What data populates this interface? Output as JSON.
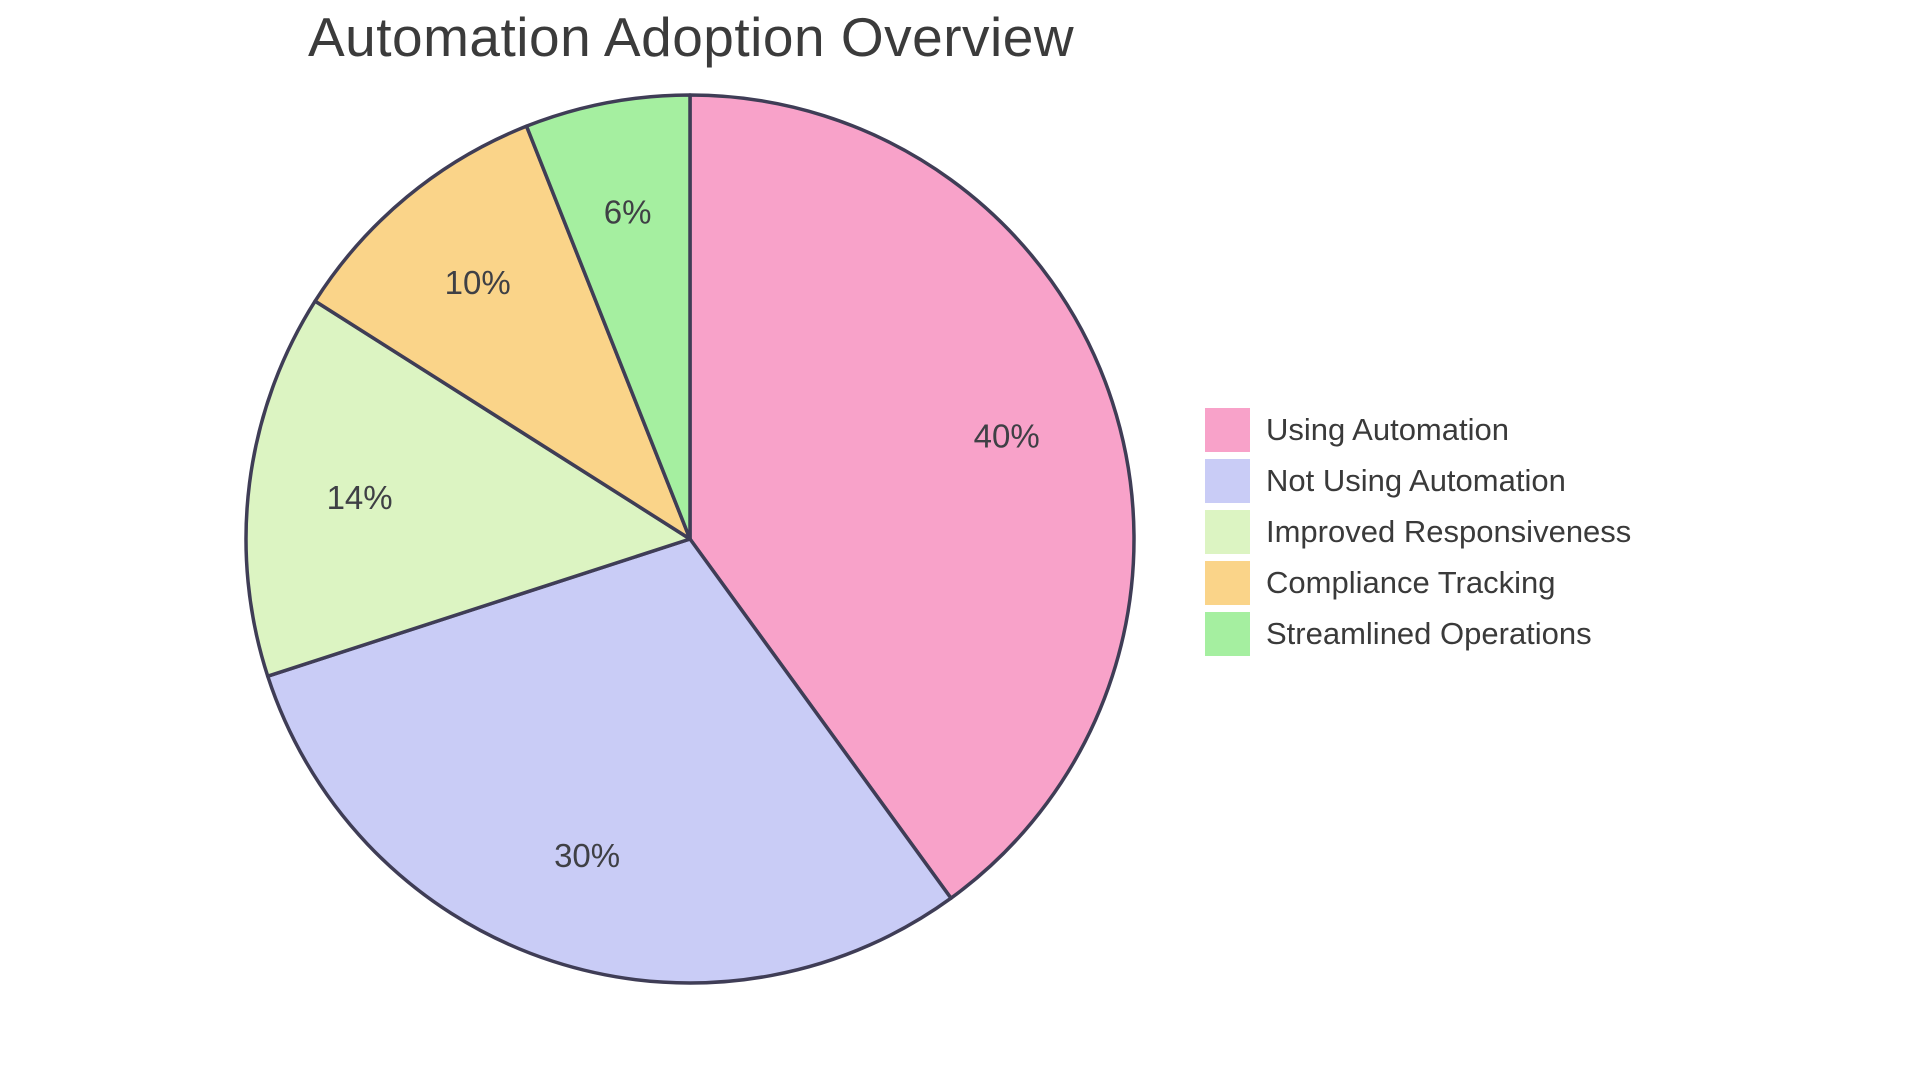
{
  "chart_data": {
    "type": "pie",
    "title": "Automation Adoption Overview",
    "start_angle_deg": 90,
    "direction": "clockwise",
    "legend_position": "right",
    "stroke_color": "#3F3D56",
    "percent_text_color": "#3F4045",
    "title_text_color": "#3B3B3B",
    "legend_text_color": "#3A3A3A",
    "background_color": "#FFFFFF",
    "slices": [
      {
        "label": "Using Automation",
        "value_pct": 40,
        "display": "40%",
        "color": "#F8A2C9"
      },
      {
        "label": "Not Using Automation",
        "value_pct": 30,
        "display": "30%",
        "color": "#C9CCF6"
      },
      {
        "label": "Improved Responsiveness",
        "value_pct": 14,
        "display": "14%",
        "color": "#DCF4C2"
      },
      {
        "label": "Compliance Tracking",
        "value_pct": 10,
        "display": "10%",
        "color": "#FAD489"
      },
      {
        "label": "Streamlined Operations",
        "value_pct": 6,
        "display": "6%",
        "color": "#A5EFA0"
      }
    ]
  }
}
